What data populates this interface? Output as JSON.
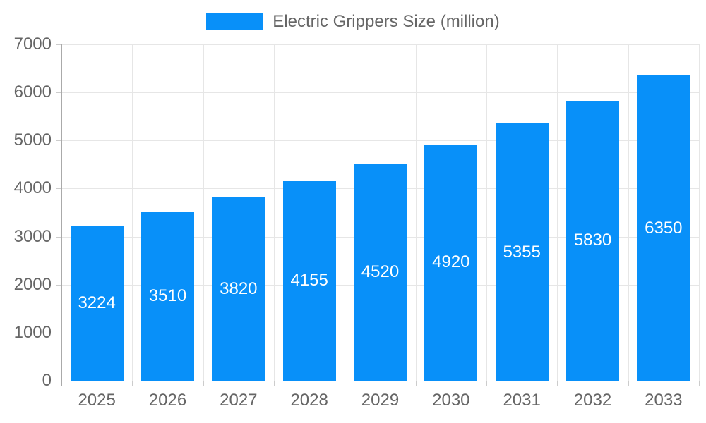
{
  "legend": {
    "label": "Electric Grippers Size (million)"
  },
  "chart_data": {
    "type": "bar",
    "title": "Electric Grippers Size (million)",
    "categories": [
      "2025",
      "2026",
      "2027",
      "2028",
      "2029",
      "2030",
      "2031",
      "2032",
      "2033"
    ],
    "values": [
      3224,
      3510,
      3820,
      4155,
      4520,
      4920,
      5355,
      5830,
      6350
    ],
    "xlabel": "",
    "ylabel": "",
    "ylim": [
      0,
      7000
    ],
    "ytick_step": 1000,
    "grid": true,
    "legend_position": "top-center",
    "value_labels": "inside-center",
    "colors": {
      "bar": "#0890F9",
      "text": "#666666",
      "grid": "#E6E6E6",
      "axis": "#AAAAAA",
      "tick": "#CCCCCC",
      "value_label": "#FFFFFF",
      "background": "#FFFFFF"
    }
  }
}
